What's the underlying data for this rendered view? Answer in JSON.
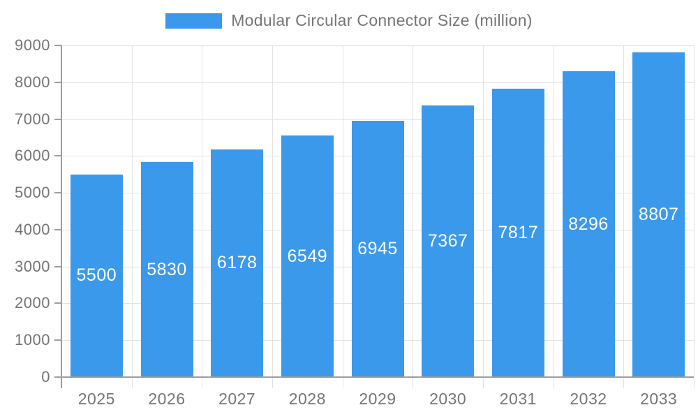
{
  "chart_data": {
    "type": "bar",
    "title": "Modular Circular Connector Size (million)",
    "categories": [
      "2025",
      "2026",
      "2027",
      "2028",
      "2029",
      "2030",
      "2031",
      "2032",
      "2033"
    ],
    "values": [
      5500,
      5830,
      6178,
      6549,
      6945,
      7367,
      7817,
      8296,
      8807
    ],
    "xlabel": "",
    "ylabel": "",
    "ylim": [
      0,
      9000
    ],
    "ytick_step": 1000,
    "yticks": [
      0,
      1000,
      2000,
      3000,
      4000,
      5000,
      6000,
      7000,
      8000,
      9000
    ],
    "bar_color": "#3b99ec",
    "bar_label_color": "#ffffff",
    "axis_color": "#9e9e9e",
    "grid_color": "#e3e3e3",
    "text_color": "#757575",
    "grid": true,
    "legend_position": "top",
    "legend_label": "Modular Circular Connector Size (million)"
  }
}
